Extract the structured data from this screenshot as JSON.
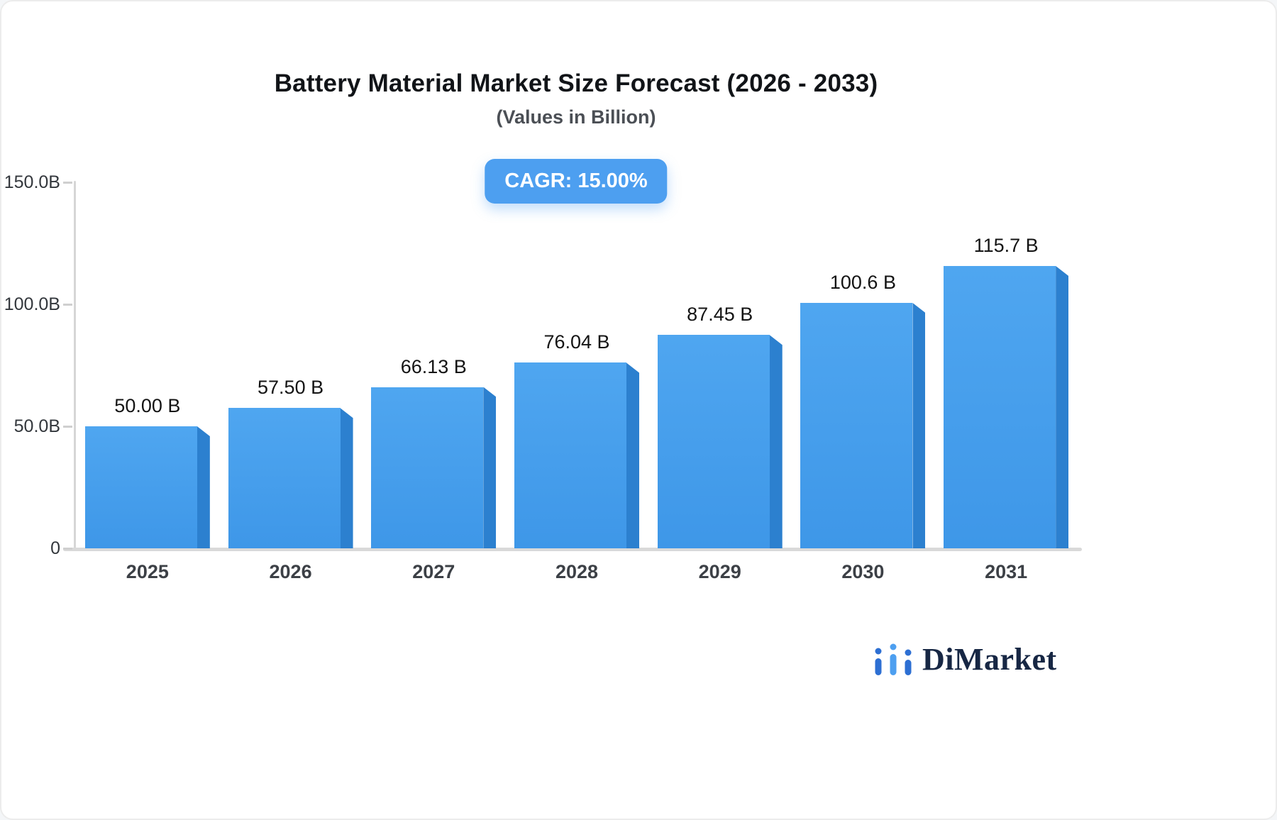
{
  "header": {
    "title": "Battery Material Market Size Forecast (2026 - 2033)",
    "subtitle": "(Values in Billion)",
    "cagr_badge": "CAGR: 15.00%"
  },
  "colors": {
    "badge": "#4d9ff0",
    "bar_top": "#4fa6f0",
    "bar_main": "#3e97e8",
    "bar_side": "#2c80cf",
    "axis": "#d9d9d9"
  },
  "chart_data": {
    "type": "bar",
    "title": "Battery Material Market Size Forecast (2026 - 2033)",
    "subtitle": "(Values in Billion)",
    "categories": [
      "2025",
      "2026",
      "2027",
      "2028",
      "2029",
      "2030",
      "2031"
    ],
    "values": [
      50.0,
      57.5,
      66.13,
      76.04,
      87.45,
      100.6,
      115.7
    ],
    "value_labels": [
      "50.00 B",
      "57.50 B",
      "66.13 B",
      "76.04 B",
      "87.45 B",
      "100.6 B",
      "115.7 B"
    ],
    "xlabel": "",
    "ylabel": "",
    "ylim": [
      0,
      150
    ],
    "yticks": [
      {
        "label": "150.0B",
        "value": 150
      },
      {
        "label": "100.0B",
        "value": 100
      },
      {
        "label": "50.0B",
        "value": 50
      },
      {
        "label": "0",
        "value": 0
      }
    ],
    "grid": false,
    "legend": false
  },
  "logo": {
    "text": "DiMarket",
    "icon": "bar-chart-logo-icon"
  }
}
